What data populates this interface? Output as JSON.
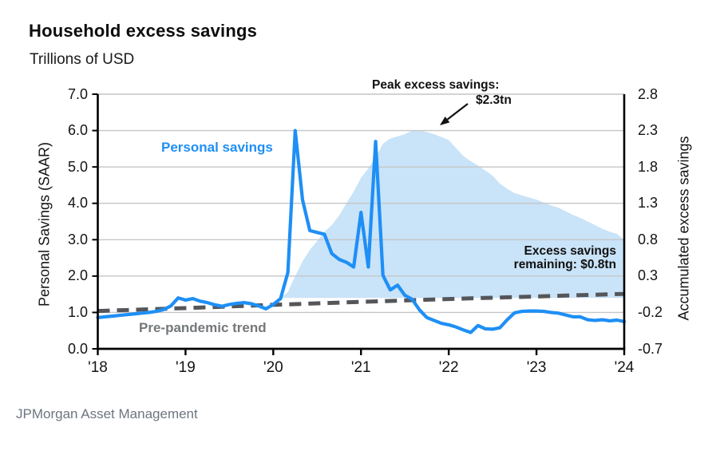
{
  "header": {
    "title": "Household excess savings",
    "subtitle": "Trillions of USD"
  },
  "footer": {
    "source": "JPMorgan Asset Management"
  },
  "colors": {
    "personal_savings_line": "#1e8ff5",
    "accumulated_area": "#c9e3f8",
    "trend_line": "#54565a",
    "grid": "#c6c6c6",
    "axis": "#000000",
    "annotation_text": "#111111",
    "trend_label_text": "#75787b",
    "footer_text": "#6e7580"
  },
  "chart_data": {
    "type": "line",
    "title": "Household excess savings",
    "units": "Trillions of USD",
    "grid": "horizontal",
    "x_axis": {
      "tick_labels": [
        "'18",
        "'19",
        "'20",
        "'21",
        "'22",
        "'23",
        "'24"
      ],
      "start": "2018-01",
      "end": "2024-01"
    },
    "left_axis": {
      "label": "Personal Savings (SAAR)",
      "tick_labels": [
        "0.0",
        "1.0",
        "2.0",
        "3.0",
        "4.0",
        "5.0",
        "6.0",
        "7.0"
      ],
      "range": [
        0.0,
        7.0
      ]
    },
    "right_axis": {
      "label": "Accumulated excess savings",
      "tick_labels": [
        "-0.7",
        "-0.2",
        "0.3",
        "0.8",
        "1.3",
        "1.8",
        "2.3",
        "2.8"
      ],
      "range": [
        -0.7,
        2.8
      ]
    },
    "series": [
      {
        "name": "Personal savings",
        "axis": "left",
        "style": "line",
        "color": "#1e8ff5",
        "start_month": "2018-01",
        "monthly_values": [
          0.86,
          0.88,
          0.9,
          0.92,
          0.94,
          0.96,
          0.98,
          1.0,
          1.03,
          1.08,
          1.18,
          1.4,
          1.34,
          1.38,
          1.31,
          1.27,
          1.21,
          1.17,
          1.22,
          1.25,
          1.27,
          1.24,
          1.18,
          1.1,
          1.22,
          1.38,
          2.1,
          6.0,
          4.1,
          3.25,
          3.2,
          3.15,
          2.62,
          2.46,
          2.38,
          2.25,
          3.75,
          2.25,
          5.7,
          2.02,
          1.62,
          1.75,
          1.47,
          1.36,
          1.07,
          0.86,
          0.78,
          0.7,
          0.66,
          0.6,
          0.52,
          0.45,
          0.64,
          0.55,
          0.54,
          0.58,
          0.8,
          0.99,
          1.03,
          1.04,
          1.04,
          1.03,
          1.0,
          0.98,
          0.93,
          0.88,
          0.88,
          0.8,
          0.78,
          0.8,
          0.77,
          0.79,
          0.75
        ]
      },
      {
        "name": "Pre-pandemic trend",
        "axis": "left",
        "style": "dashed",
        "color": "#54565a",
        "yearly_values": [
          1.04,
          1.12,
          1.21,
          1.29,
          1.37,
          1.44,
          1.51
        ]
      },
      {
        "name": "Accumulated excess savings",
        "axis": "right",
        "style": "area",
        "color": "#c9e3f8",
        "start_month": "2020-02",
        "monthly_values": [
          0.0,
          0.08,
          0.3,
          0.5,
          0.66,
          0.78,
          0.91,
          1.0,
          1.13,
          1.3,
          1.46,
          1.65,
          1.78,
          1.93,
          2.12,
          2.19,
          2.22,
          2.25,
          2.3,
          2.3,
          2.28,
          2.25,
          2.21,
          2.17,
          2.06,
          1.95,
          1.88,
          1.82,
          1.75,
          1.68,
          1.57,
          1.5,
          1.44,
          1.41,
          1.38,
          1.35,
          1.31,
          1.27,
          1.24,
          1.19,
          1.14,
          1.1,
          1.05,
          1.0,
          0.95,
          0.91,
          0.88,
          0.8
        ]
      }
    ],
    "annotations": {
      "peak": {
        "line1": "Peak excess savings:",
        "line2": "$2.3tn",
        "value_tn": 2.3
      },
      "remaining": {
        "line1": "Excess savings",
        "line2": "remaining: $0.8tn",
        "value_tn": 0.8
      },
      "personal_savings_label": "Personal savings",
      "pre_pandemic_label": "Pre-pandemic trend"
    }
  }
}
